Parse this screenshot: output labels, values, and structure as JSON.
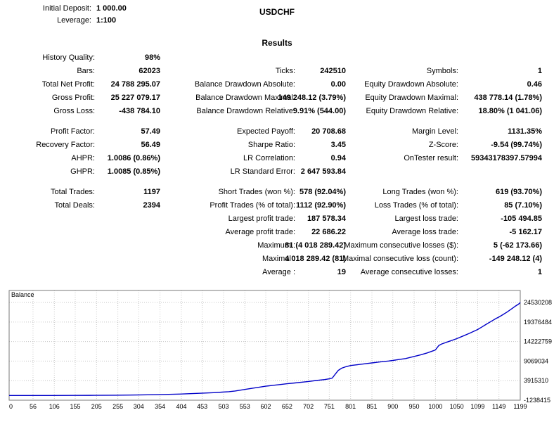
{
  "header": {
    "initial_deposit_label": "Initial Deposit:",
    "initial_deposit_value": "1 000.00",
    "leverage_label": "Leverage:",
    "leverage_value": "1:100",
    "symbol": "USDCHF",
    "results_title": "Results"
  },
  "stats": {
    "sections": [
      [
        [
          "History Quality:",
          "98%",
          "",
          "",
          "",
          ""
        ],
        [
          "Bars:",
          "62023",
          "Ticks:",
          "242510",
          "Symbols:",
          "1"
        ],
        [
          "Total Net Profit:",
          "24 788 295.07",
          "Balance Drawdown Absolute:",
          "0.00",
          "Equity Drawdown Absolute:",
          "0.46"
        ],
        [
          "Gross Profit:",
          "25 227 079.17",
          "Balance Drawdown Maximal:",
          "149 248.12 (3.79%)",
          "Equity Drawdown Maximal:",
          "438 778.14 (1.78%)"
        ],
        [
          "Gross Loss:",
          "-438 784.10",
          "Balance Drawdown Relative:",
          "9.91% (544.00)",
          "Equity Drawdown Relative:",
          "18.80% (1 041.06)"
        ]
      ],
      [
        [
          "Profit Factor:",
          "57.49",
          "Expected Payoff:",
          "20 708.68",
          "Margin Level:",
          "1131.35%"
        ],
        [
          "Recovery Factor:",
          "56.49",
          "Sharpe Ratio:",
          "3.45",
          "Z-Score:",
          "-9.54 (99.74%)"
        ],
        [
          "AHPR:",
          "1.0086 (0.86%)",
          "LR Correlation:",
          "0.94",
          "OnTester result:",
          "59343178397.57994"
        ],
        [
          "GHPR:",
          "1.0085 (0.85%)",
          "LR Standard Error:",
          "2 647 593.84",
          "",
          ""
        ]
      ],
      [
        [
          "Total Trades:",
          "1197",
          "Short Trades (won %):",
          "578 (92.04%)",
          "Long Trades (won %):",
          "619 (93.70%)"
        ],
        [
          "Total Deals:",
          "2394",
          "Profit Trades (% of total):",
          "1112 (92.90%)",
          "Loss Trades (% of total):",
          "85 (7.10%)"
        ],
        [
          "",
          "",
          "Largest profit trade:",
          "187 578.34",
          "Largest loss trade:",
          "-105 494.85"
        ],
        [
          "",
          "",
          "Average profit trade:",
          "22 686.22",
          "Average loss trade:",
          "-5 162.17"
        ],
        [
          "",
          "",
          "Maximum :",
          "81 (4 018 289.42)",
          "Maximum consecutive losses ($):",
          "5 (-62 173.66)"
        ],
        [
          "",
          "",
          "Maximal :",
          "4 018 289.42 (81)",
          "Maximal consecutive loss (count):",
          "-149 248.12 (4)"
        ],
        [
          "",
          "",
          "Average :",
          "19",
          "Average consecutive losses:",
          "1"
        ]
      ]
    ]
  },
  "chart_data": {
    "type": "line",
    "title": "Balance",
    "x_ticks": [
      "0",
      "56",
      "106",
      "155",
      "205",
      "255",
      "304",
      "354",
      "404",
      "453",
      "503",
      "553",
      "602",
      "652",
      "702",
      "751",
      "801",
      "851",
      "900",
      "950",
      "1000",
      "1050",
      "1099",
      "1149",
      "1199"
    ],
    "y_ticks": [
      24530208,
      19376484,
      14222759,
      9069034,
      3915310,
      -1238415
    ],
    "x_range": [
      0,
      1199
    ],
    "y_range": [
      -1238415,
      27700000
    ],
    "line_color": "#0000c8",
    "grid": true,
    "legend_position": "top-left",
    "series": [
      {
        "name": "Balance",
        "x": [
          0,
          50,
          100,
          150,
          200,
          250,
          300,
          350,
          400,
          450,
          480,
          500,
          515,
          530,
          553,
          570,
          585,
          602,
          620,
          640,
          652,
          670,
          690,
          702,
          720,
          740,
          751,
          758,
          765,
          772,
          780,
          790,
          801,
          815,
          830,
          851,
          870,
          890,
          900,
          915,
          930,
          950,
          965,
          980,
          995,
          1000,
          1008,
          1015,
          1030,
          1050,
          1065,
          1080,
          1099,
          1108,
          1118,
          1130,
          1142,
          1149,
          1158,
          1168,
          1178,
          1188,
          1195,
          1199
        ],
        "values": [
          1000,
          3000,
          8000,
          18000,
          35000,
          70000,
          130000,
          230000,
          380000,
          600000,
          750000,
          900000,
          1000000,
          1200000,
          1600000,
          1900000,
          2150000,
          2450000,
          2700000,
          2950000,
          3100000,
          3300000,
          3550000,
          3700000,
          3950000,
          4200000,
          4400000,
          4600000,
          5600000,
          6600000,
          7200000,
          7600000,
          7900000,
          8100000,
          8300000,
          8600000,
          8850000,
          9100000,
          9250000,
          9500000,
          9750000,
          10300000,
          10700000,
          11200000,
          11800000,
          12000000,
          13200000,
          13600000,
          14200000,
          15000000,
          15700000,
          16400000,
          17400000,
          18000000,
          18700000,
          19500000,
          20300000,
          20700000,
          21300000,
          22000000,
          22800000,
          23600000,
          24100000,
          24530208
        ]
      }
    ]
  }
}
